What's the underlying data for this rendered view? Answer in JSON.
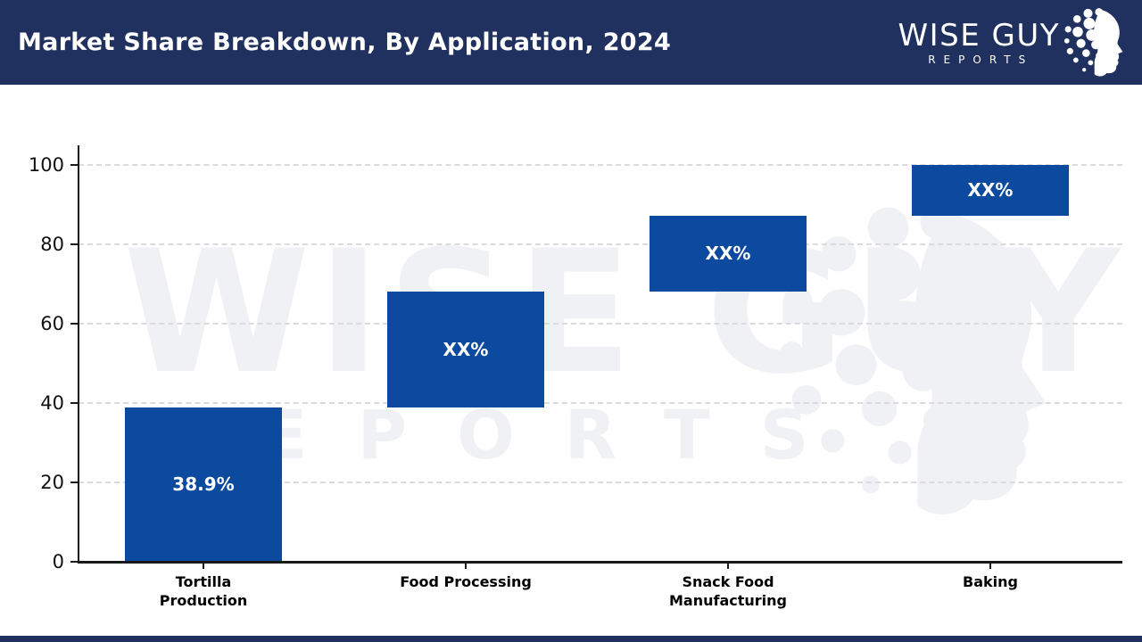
{
  "header": {
    "title": "Market Share Breakdown, By Application, 2024",
    "logo": {
      "brand": "WISE GUY",
      "sub": "REPORTS"
    }
  },
  "watermark": {
    "brand": "WISE GUY",
    "sub": "REPORTS"
  },
  "colors": {
    "header_bg": "#20315f",
    "footer_bg": "#20315f",
    "bar": "#0b4a9e",
    "grid": "#dbdbdb",
    "axis": "#1a1a1a",
    "tick_text": "#111111",
    "watermark": "#f0f1f4"
  },
  "chart_data": {
    "type": "bar",
    "subtype": "waterfall",
    "title": "Market Share Breakdown, By Application, 2024",
    "xlabel": "",
    "ylabel": "",
    "ylim": [
      0,
      105
    ],
    "y_ticks": [
      0,
      20,
      40,
      60,
      80,
      100
    ],
    "grid": "horizontal-dashed",
    "legend": "none",
    "bar_color": "#0b4a9e",
    "categories": [
      "Tortilla Production",
      "Food Processing",
      "Snack Food Manufacturing",
      "Baking"
    ],
    "category_label_lines": [
      [
        "Tortilla",
        "Production"
      ],
      [
        "Food Processing"
      ],
      [
        "Snack Food",
        "Manufacturing"
      ],
      [
        "Baking"
      ]
    ],
    "bars": [
      {
        "category": "Tortilla Production",
        "start": 0,
        "end": 38.9,
        "value": 38.9,
        "value_label": "38.9%"
      },
      {
        "category": "Food Processing",
        "start": 38.9,
        "end": 68.1,
        "value": 29.2,
        "value_label": "XX%"
      },
      {
        "category": "Snack Food Manufacturing",
        "start": 68.1,
        "end": 87.2,
        "value": 19.1,
        "value_label": "XX%"
      },
      {
        "category": "Baking",
        "start": 87.2,
        "end": 100,
        "value": 12.8,
        "value_label": "XX%"
      }
    ]
  }
}
